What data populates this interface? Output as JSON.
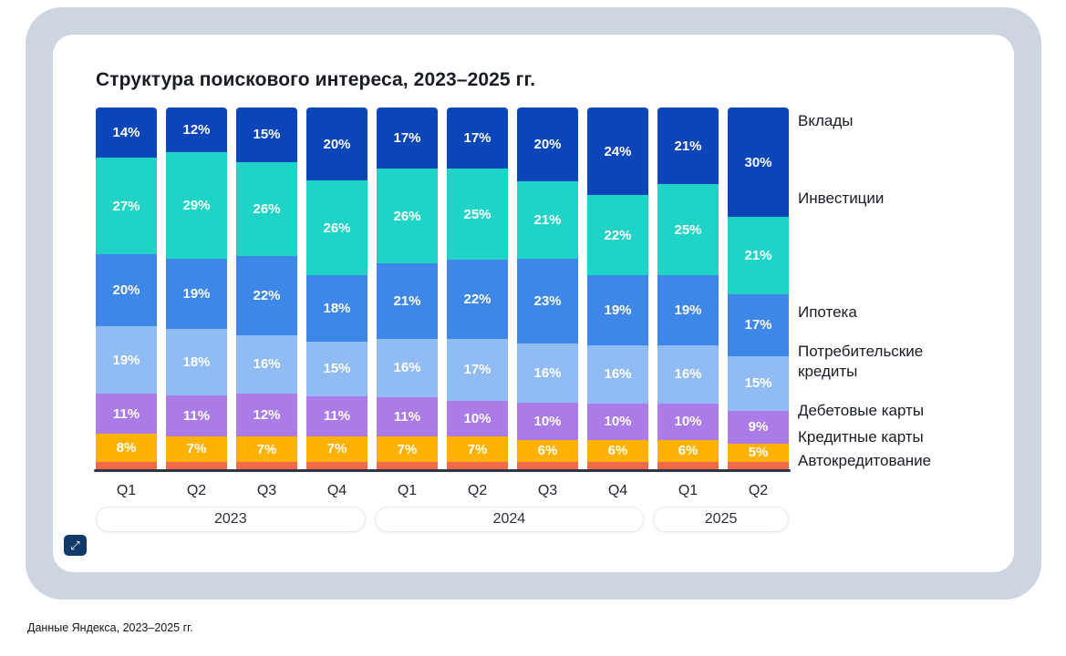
{
  "window": {
    "footer_note": "Данные Яндекса, 2023–2025 гг."
  },
  "icons": {
    "expand": "⤢"
  },
  "chart_data": {
    "type": "bar",
    "variant": "stacked-100",
    "title": "Структура поискового интереса, 2023–2025 гг.",
    "stack_total": 100,
    "value_suffix": "%",
    "legend_position": "right",
    "grid": false,
    "categories": [
      "Q1",
      "Q2",
      "Q3",
      "Q4",
      "Q1",
      "Q2",
      "Q3",
      "Q4",
      "Q1",
      "Q2"
    ],
    "year_groups": [
      {
        "label": "2023",
        "span": 4
      },
      {
        "label": "2024",
        "span": 4
      },
      {
        "label": "2025",
        "span": 2
      }
    ],
    "series": [
      {
        "name": "Вклады",
        "color": "#0a45ba",
        "labels_visible": true,
        "values": [
          14,
          12,
          15,
          20,
          17,
          17,
          20,
          24,
          21,
          30
        ]
      },
      {
        "name": "Инвестиции",
        "color": "#1fd4c7",
        "labels_visible": true,
        "values": [
          27,
          29,
          26,
          26,
          26,
          25,
          21,
          22,
          25,
          21
        ]
      },
      {
        "name": "Ипотека",
        "color": "#3e87e8",
        "labels_visible": true,
        "values": [
          20,
          19,
          22,
          18,
          21,
          22,
          23,
          19,
          19,
          17
        ]
      },
      {
        "name": "Потребительские кредиты",
        "color": "#90bbf3",
        "labels_visible": true,
        "values": [
          19,
          18,
          16,
          15,
          16,
          17,
          16,
          16,
          16,
          15
        ]
      },
      {
        "name": "Дебетовые карты",
        "color": "#ab7ce8",
        "labels_visible": true,
        "values": [
          11,
          11,
          12,
          11,
          11,
          10,
          10,
          10,
          10,
          9
        ]
      },
      {
        "name": "Кредитные карты",
        "color": "#ffb201",
        "labels_visible": true,
        "values": [
          8,
          7,
          7,
          7,
          7,
          7,
          6,
          6,
          6,
          5
        ]
      },
      {
        "name": "Автокредитование",
        "color": "#f3694a",
        "labels_visible": false,
        "values": [
          2,
          2,
          2,
          2,
          2,
          2,
          2,
          2,
          2,
          2
        ]
      }
    ]
  }
}
